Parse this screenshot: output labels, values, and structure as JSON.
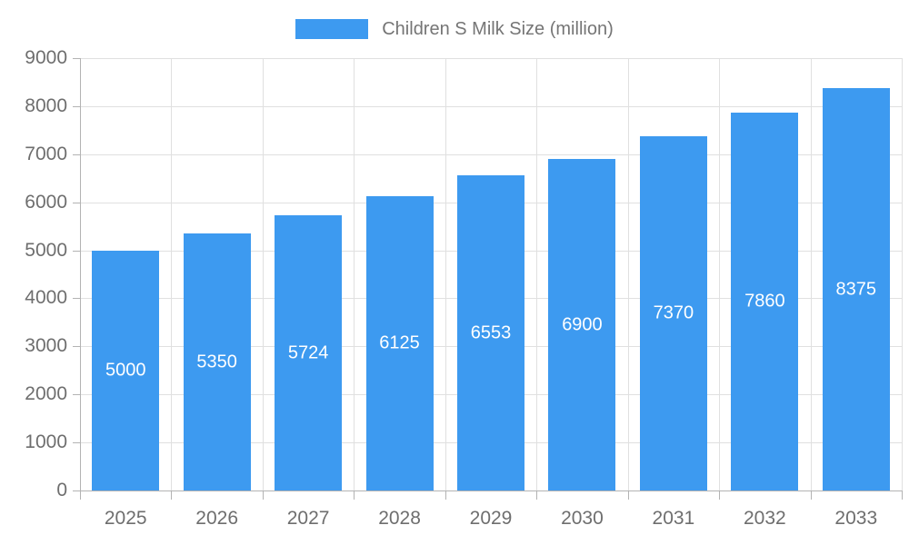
{
  "legend": {
    "label": "Children S Milk Size (million)"
  },
  "colors": {
    "bar": "#3d9af0",
    "value_label": "#ffffff",
    "title_text": "#757575",
    "axis_label": "#6e6e6e",
    "grid": "#e0e0e0",
    "axis_line": "#b3b3b3"
  },
  "chart_data": {
    "type": "bar",
    "title": "Children S Milk Size (million)",
    "categories": [
      "2025",
      "2026",
      "2027",
      "2028",
      "2029",
      "2030",
      "2031",
      "2032",
      "2033"
    ],
    "values": [
      5000,
      5350,
      5724,
      6125,
      6553,
      6900,
      7370,
      7860,
      8375
    ],
    "series_name": "Children S Milk Size (million)",
    "xlabel": "",
    "ylabel": "",
    "ylim": [
      0,
      9000
    ],
    "ytick_step": 1000,
    "ytick_labels": [
      "0",
      "1000",
      "2000",
      "3000",
      "4000",
      "5000",
      "6000",
      "7000",
      "8000",
      "9000"
    ],
    "grid": true,
    "grid_vertical": true,
    "legend_position": "top-center",
    "value_labels_inside_bars": true
  }
}
